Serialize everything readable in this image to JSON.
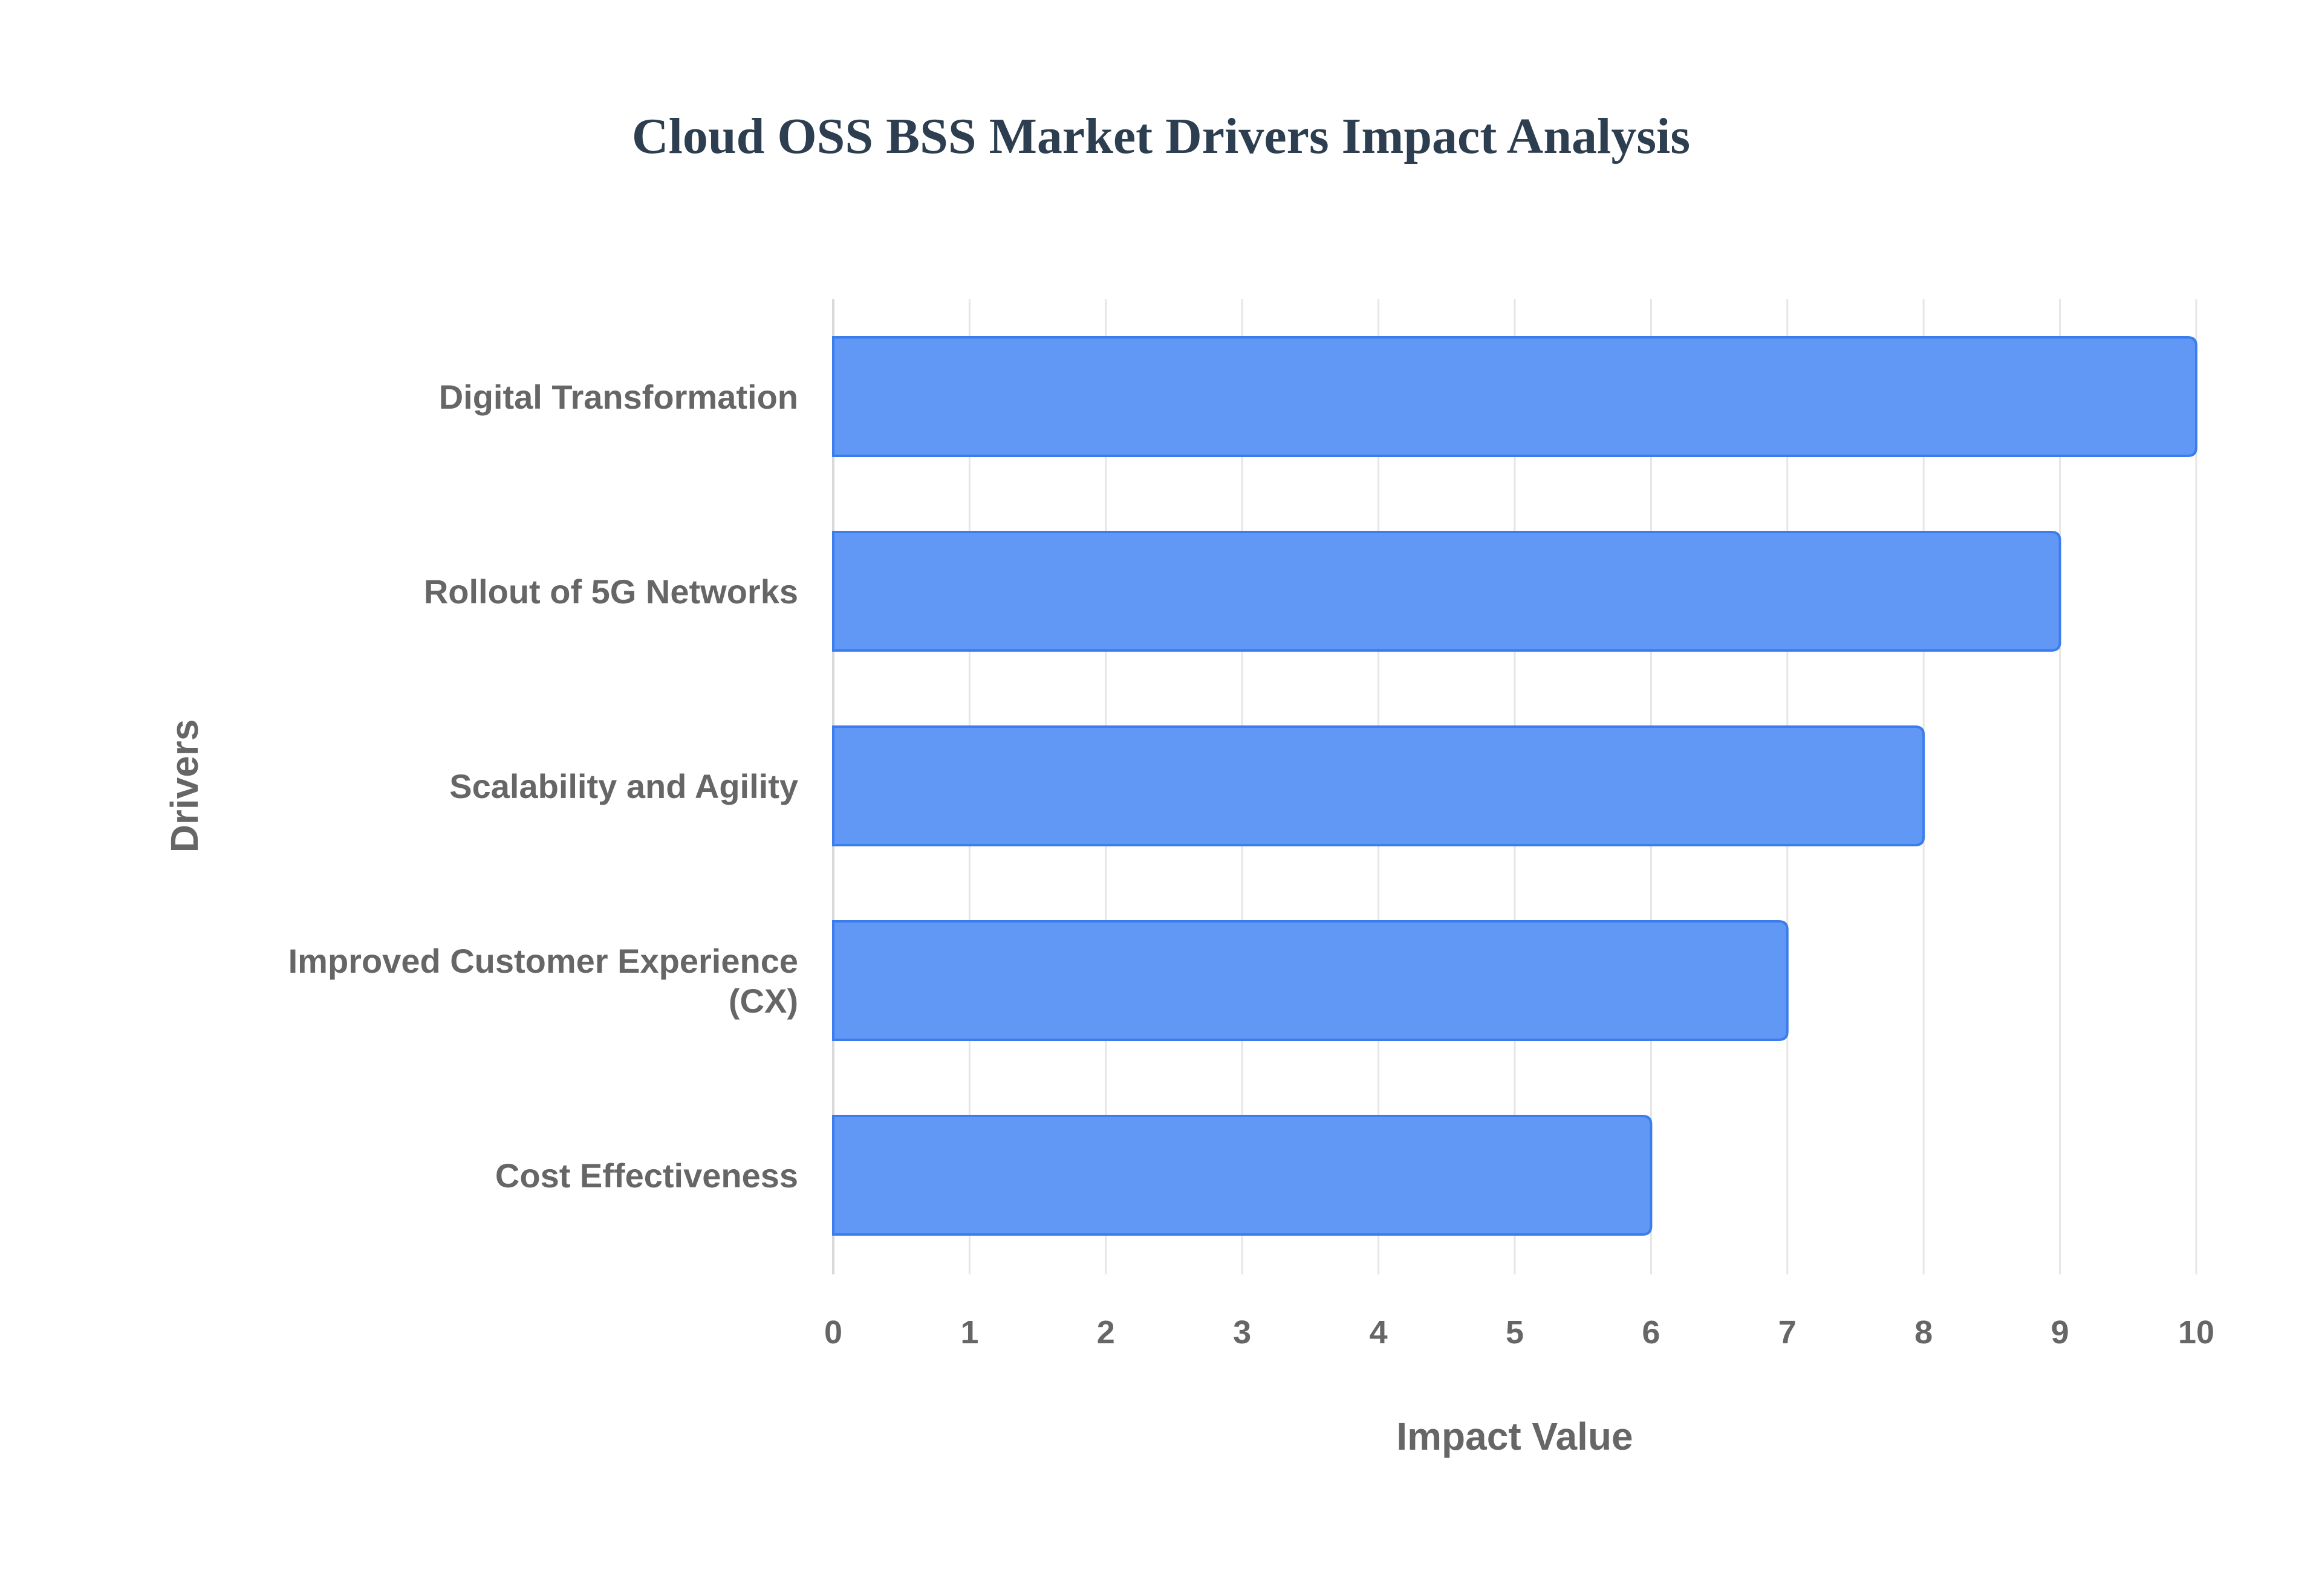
{
  "chart_data": {
    "type": "bar",
    "orientation": "horizontal",
    "title": "Cloud OSS BSS Market Drivers Impact Analysis",
    "xlabel": "Impact Value",
    "ylabel": "Drivers",
    "categories": [
      [
        "Digital Transformation"
      ],
      [
        "Rollout of 5G Networks"
      ],
      [
        "Scalability and Agility"
      ],
      [
        "Improved Customer Experience",
        "(CX)"
      ],
      [
        "Cost Effectiveness"
      ]
    ],
    "values": [
      10,
      9,
      8,
      7,
      6
    ],
    "xlim": [
      0,
      10
    ],
    "xticks": [
      "0",
      "1",
      "2",
      "3",
      "4",
      "5",
      "6",
      "7",
      "8",
      "9",
      "10"
    ],
    "grid": true,
    "legend": "none",
    "colors": {
      "bar_fill": "#6198f5",
      "bar_stroke": "#3b7ded",
      "grid": "#e6e6e6",
      "text": "#666666",
      "title": "#2c3e50"
    }
  }
}
